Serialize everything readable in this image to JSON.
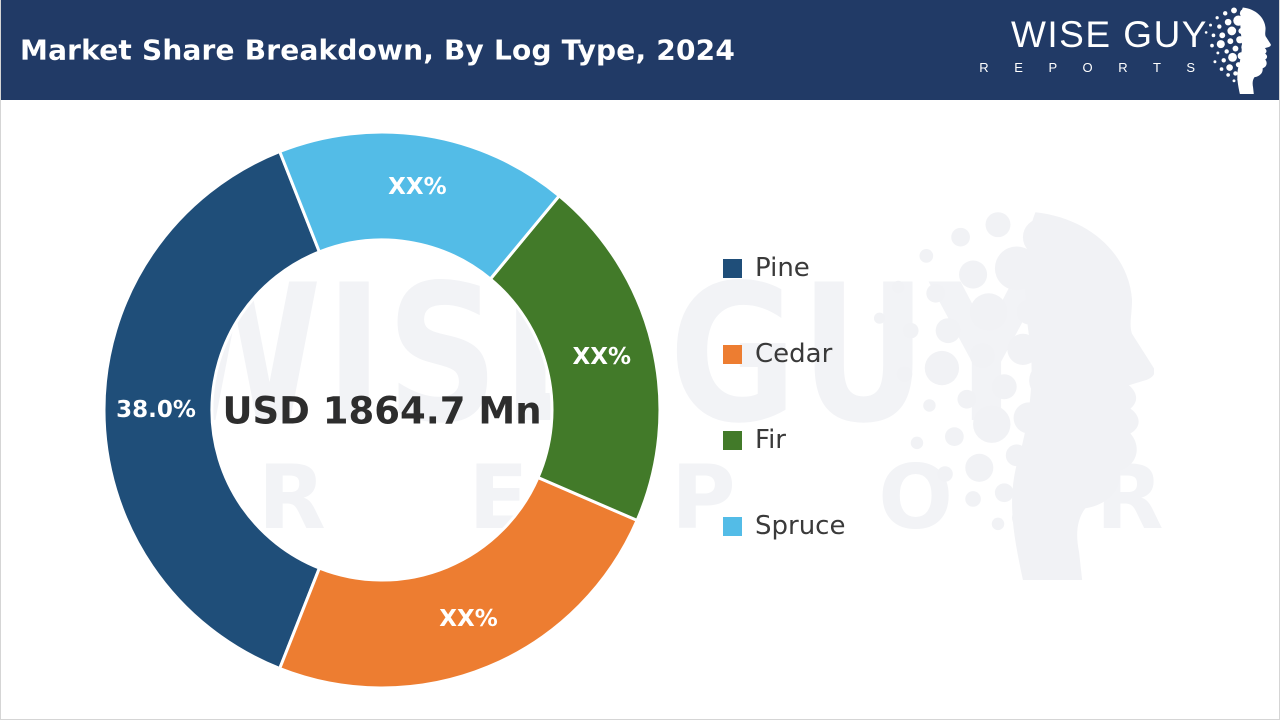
{
  "header": {
    "title": "Market Share Breakdown, By Log Type, 2024",
    "logo": {
      "name": "Wise Guy Reports",
      "line1": "WISE GUY",
      "line2": "R E P O R T S"
    }
  },
  "watermark": {
    "line1": "WISE GUY",
    "line2": "R E P O R T S"
  },
  "chart_data": {
    "type": "pie",
    "variant": "donut",
    "title": "Market Share Breakdown, By Log Type, 2024",
    "center_label": "USD 1864.7 Mn",
    "start_angle_deg": 111.6,
    "direction": "counterclockwise",
    "inner_radius_ratio": 0.61,
    "legend_position": "right",
    "slices": [
      {
        "label": "Pine",
        "display_value": "38.0%",
        "percent": 38.0,
        "color": "#1F4E79"
      },
      {
        "label": "Cedar",
        "display_value": "XX%",
        "percent": 24.5,
        "color": "#ED7D31"
      },
      {
        "label": "Fir",
        "display_value": "XX%",
        "percent": 20.5,
        "color": "#427A29"
      },
      {
        "label": "Spruce",
        "display_value": "XX%",
        "percent": 17.0,
        "color": "#53BCE7"
      }
    ]
  },
  "colors": {
    "header_bg": "#213A66",
    "page_bg": "#FFFFFF",
    "slice_label_text": "#FFFFFF",
    "center_text": "#2D2D2D",
    "legend_text": "#3A3A3A",
    "border": "#D5D5D5"
  }
}
